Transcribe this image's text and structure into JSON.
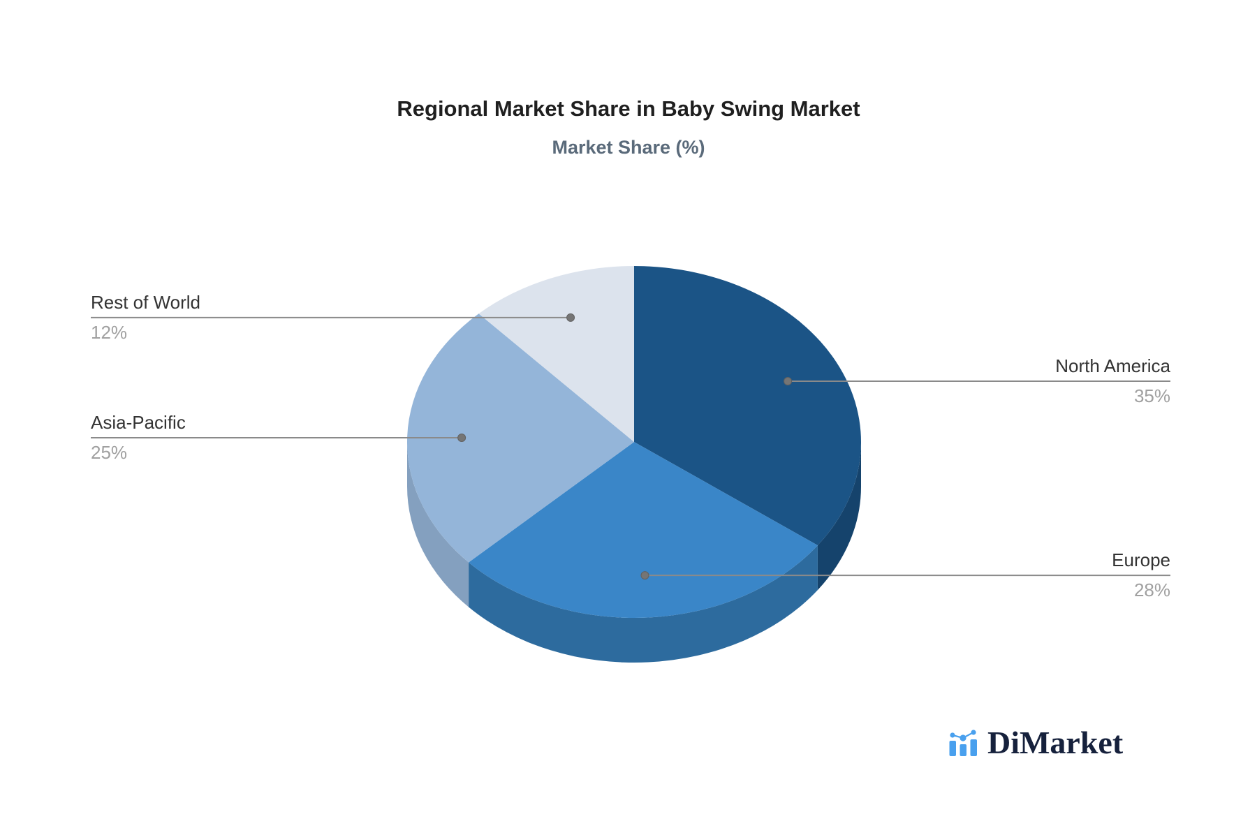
{
  "header": {
    "title": "Regional Market Share in Baby Swing Market",
    "subtitle": "Market Share (%)"
  },
  "chart_data": {
    "type": "pie",
    "style": "3d",
    "title": "Regional Market Share in Baby Swing Market",
    "subtitle": "Market Share (%)",
    "unit": "%",
    "total": 100,
    "direction": "clockwise",
    "start_angle_deg": 0,
    "legend": "none",
    "slices": [
      {
        "label": "North America",
        "value": 35,
        "display": "35%",
        "color": "#1b5486",
        "side_color": "#15436c"
      },
      {
        "label": "Europe",
        "value": 28,
        "display": "28%",
        "color": "#3a86c8",
        "side_color": "#2d6b9e"
      },
      {
        "label": "Asia-Pacific",
        "value": 25,
        "display": "25%",
        "color": "#94b5d9",
        "side_color": "#84a0bf"
      },
      {
        "label": "Rest of World",
        "value": 12,
        "display": "12%",
        "color": "#dce3ed",
        "side_color": "#c3cedd"
      }
    ],
    "colors": {
      "leader_line": "#8a8a8a",
      "leader_dot": "#757575",
      "label_text": "#333333",
      "value_text": "#a0a0a0"
    }
  },
  "branding": {
    "logo_text": "DiMarket",
    "logo_icon": "bar-chart-trend-icon",
    "icon_color": "#49a0ee",
    "text_color": "#16213c"
  }
}
